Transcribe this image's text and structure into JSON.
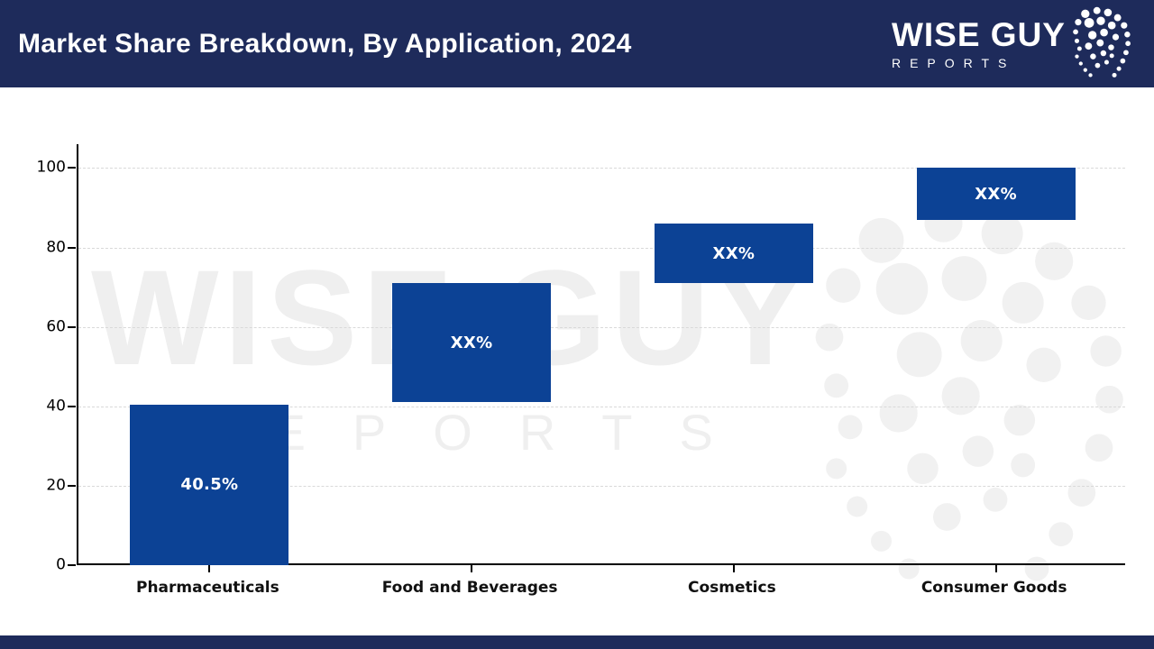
{
  "header": {
    "title": "Market Share Breakdown, By Application, 2024",
    "logo": {
      "line1": "WISE GUY",
      "line2": "REPORTS"
    }
  },
  "watermark": {
    "line1": "WISE GUY",
    "line2": "REPORTS"
  },
  "colors": {
    "header_bg": "#1e2b5b",
    "bar": "#0c4295",
    "grid": "#d9d9d9",
    "axis": "#000000",
    "bar_label": "#ffffff",
    "watermark": "#efefef"
  },
  "chart_data": {
    "type": "bar",
    "subtype": "floating-waterfall",
    "title": "Market Share Breakdown, By Application, 2024",
    "categories": [
      "Pharmaceuticals",
      "Food and Beverages",
      "Cosmetics",
      "Consumer Goods"
    ],
    "segments": [
      {
        "category": "Pharmaceuticals",
        "start": 0,
        "end": 40.5,
        "label": "40.5%"
      },
      {
        "category": "Food and Beverages",
        "start": 41,
        "end": 71,
        "label": "XX%"
      },
      {
        "category": "Cosmetics",
        "start": 71,
        "end": 86,
        "label": "XX%"
      },
      {
        "category": "Consumer Goods",
        "start": 87,
        "end": 100,
        "label": "XX%"
      }
    ],
    "yticks": [
      0,
      20,
      40,
      60,
      80,
      100
    ],
    "ylim": [
      0,
      106
    ],
    "xlabel": "",
    "ylabel": "",
    "grid": "horizontal-dashed",
    "legend": "none"
  }
}
